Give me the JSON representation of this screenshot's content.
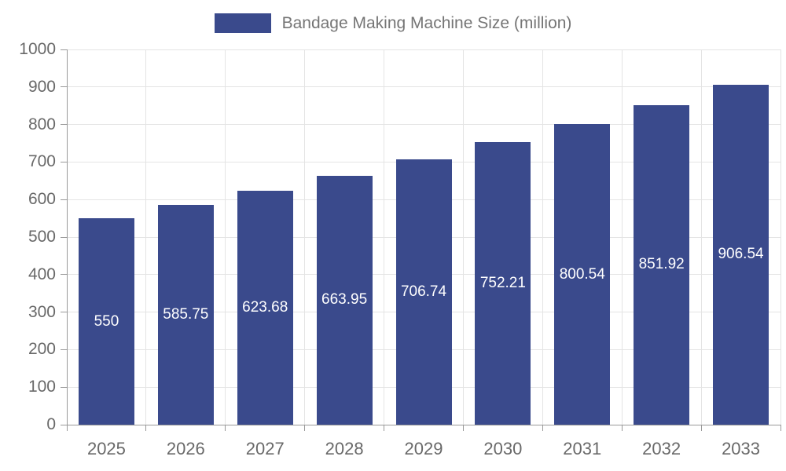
{
  "chart_data": {
    "type": "bar",
    "title": "Bandage Making Machine Size (million)",
    "legend_entries": [
      "Bandage Making Machine Size (million)"
    ],
    "legend_position": "top-center",
    "categories": [
      "2025",
      "2026",
      "2027",
      "2028",
      "2029",
      "2030",
      "2031",
      "2032",
      "2033"
    ],
    "series": [
      {
        "name": "Bandage Making Machine Size (million)",
        "values": [
          550,
          585.75,
          623.68,
          663.95,
          706.74,
          752.21,
          800.54,
          851.92,
          906.54
        ]
      }
    ],
    "data_labels": [
      "550",
      "585.75",
      "623.68",
      "663.95",
      "706.74",
      "752.21",
      "800.54",
      "851.92",
      "906.54"
    ],
    "data_label_position": "inside-center",
    "xlabel": "",
    "ylabel": "",
    "ylim": [
      0,
      1000
    ],
    "y_ticks": [
      0,
      100,
      200,
      300,
      400,
      500,
      600,
      700,
      800,
      900,
      1000
    ],
    "grid": "horizontal and vertical light gray lines",
    "colors": {
      "bar": "#3A4A8C",
      "bar_label": "#FFFFFF",
      "grid_line": "#E4E4E4",
      "axis_line": "#999999",
      "tick_label": "#696969",
      "legend_text": "#757575",
      "background": "#FFFFFF"
    }
  }
}
